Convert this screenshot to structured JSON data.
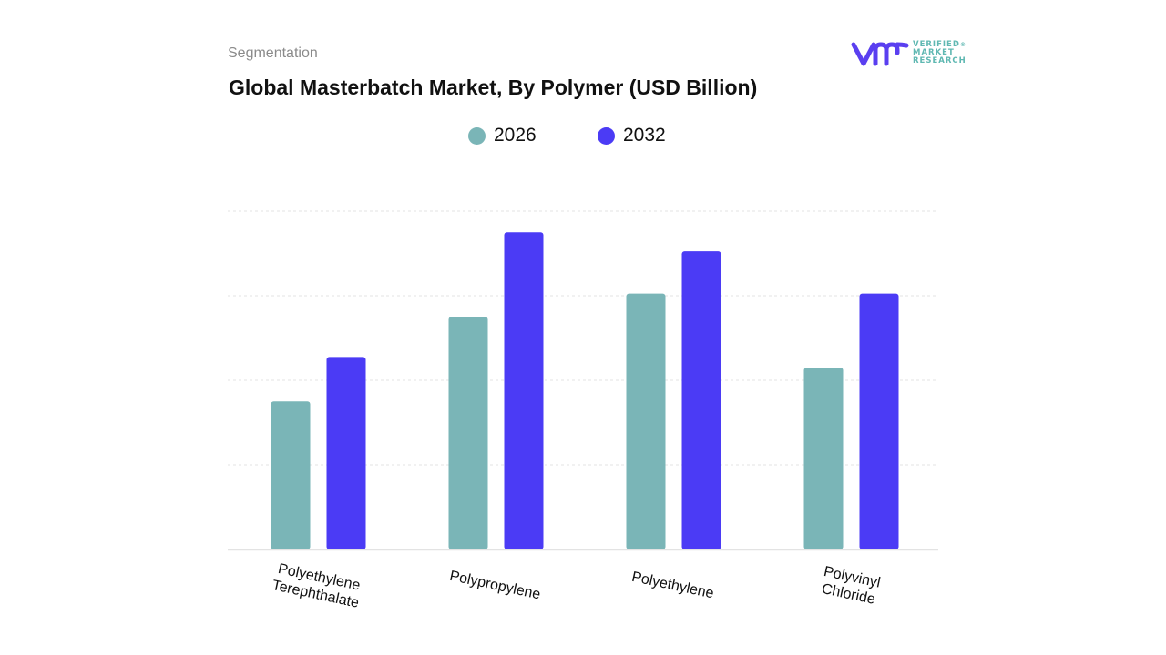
{
  "header": {
    "kicker": "Segmentation",
    "title": "Global Masterbatch Market, By Polymer (USD Billion)"
  },
  "logo": {
    "line1": "VERIFIED",
    "line2": "MARKET",
    "line3": "RESEARCH",
    "registered": "®"
  },
  "colors": {
    "series_2026": "#7ab5b7",
    "series_2032": "#4b3bf5",
    "logo_mark": "#5a3ff0",
    "logo_text": "#5fb8b2",
    "grid": "#e3e3e3",
    "axis": "#e3e3e3"
  },
  "chart_data": {
    "type": "bar",
    "title": "Global Masterbatch Market, By Polymer (USD Billion)",
    "xlabel": "",
    "ylabel": "",
    "categories": [
      [
        "Polyethylene",
        "Terephthalate"
      ],
      [
        "Polypropylene"
      ],
      [
        "Polyethylene"
      ],
      [
        "Polyvinyl",
        "Chloride"
      ]
    ],
    "series": [
      {
        "name": "2026",
        "values": [
          3.5,
          5.5,
          6.05,
          4.3
        ]
      },
      {
        "name": "2032",
        "values": [
          4.55,
          7.5,
          7.05,
          6.05
        ]
      }
    ],
    "ylim": [
      0,
      9
    ],
    "grid": true,
    "legend_position": "top-center",
    "value_axis_labels": "none"
  }
}
